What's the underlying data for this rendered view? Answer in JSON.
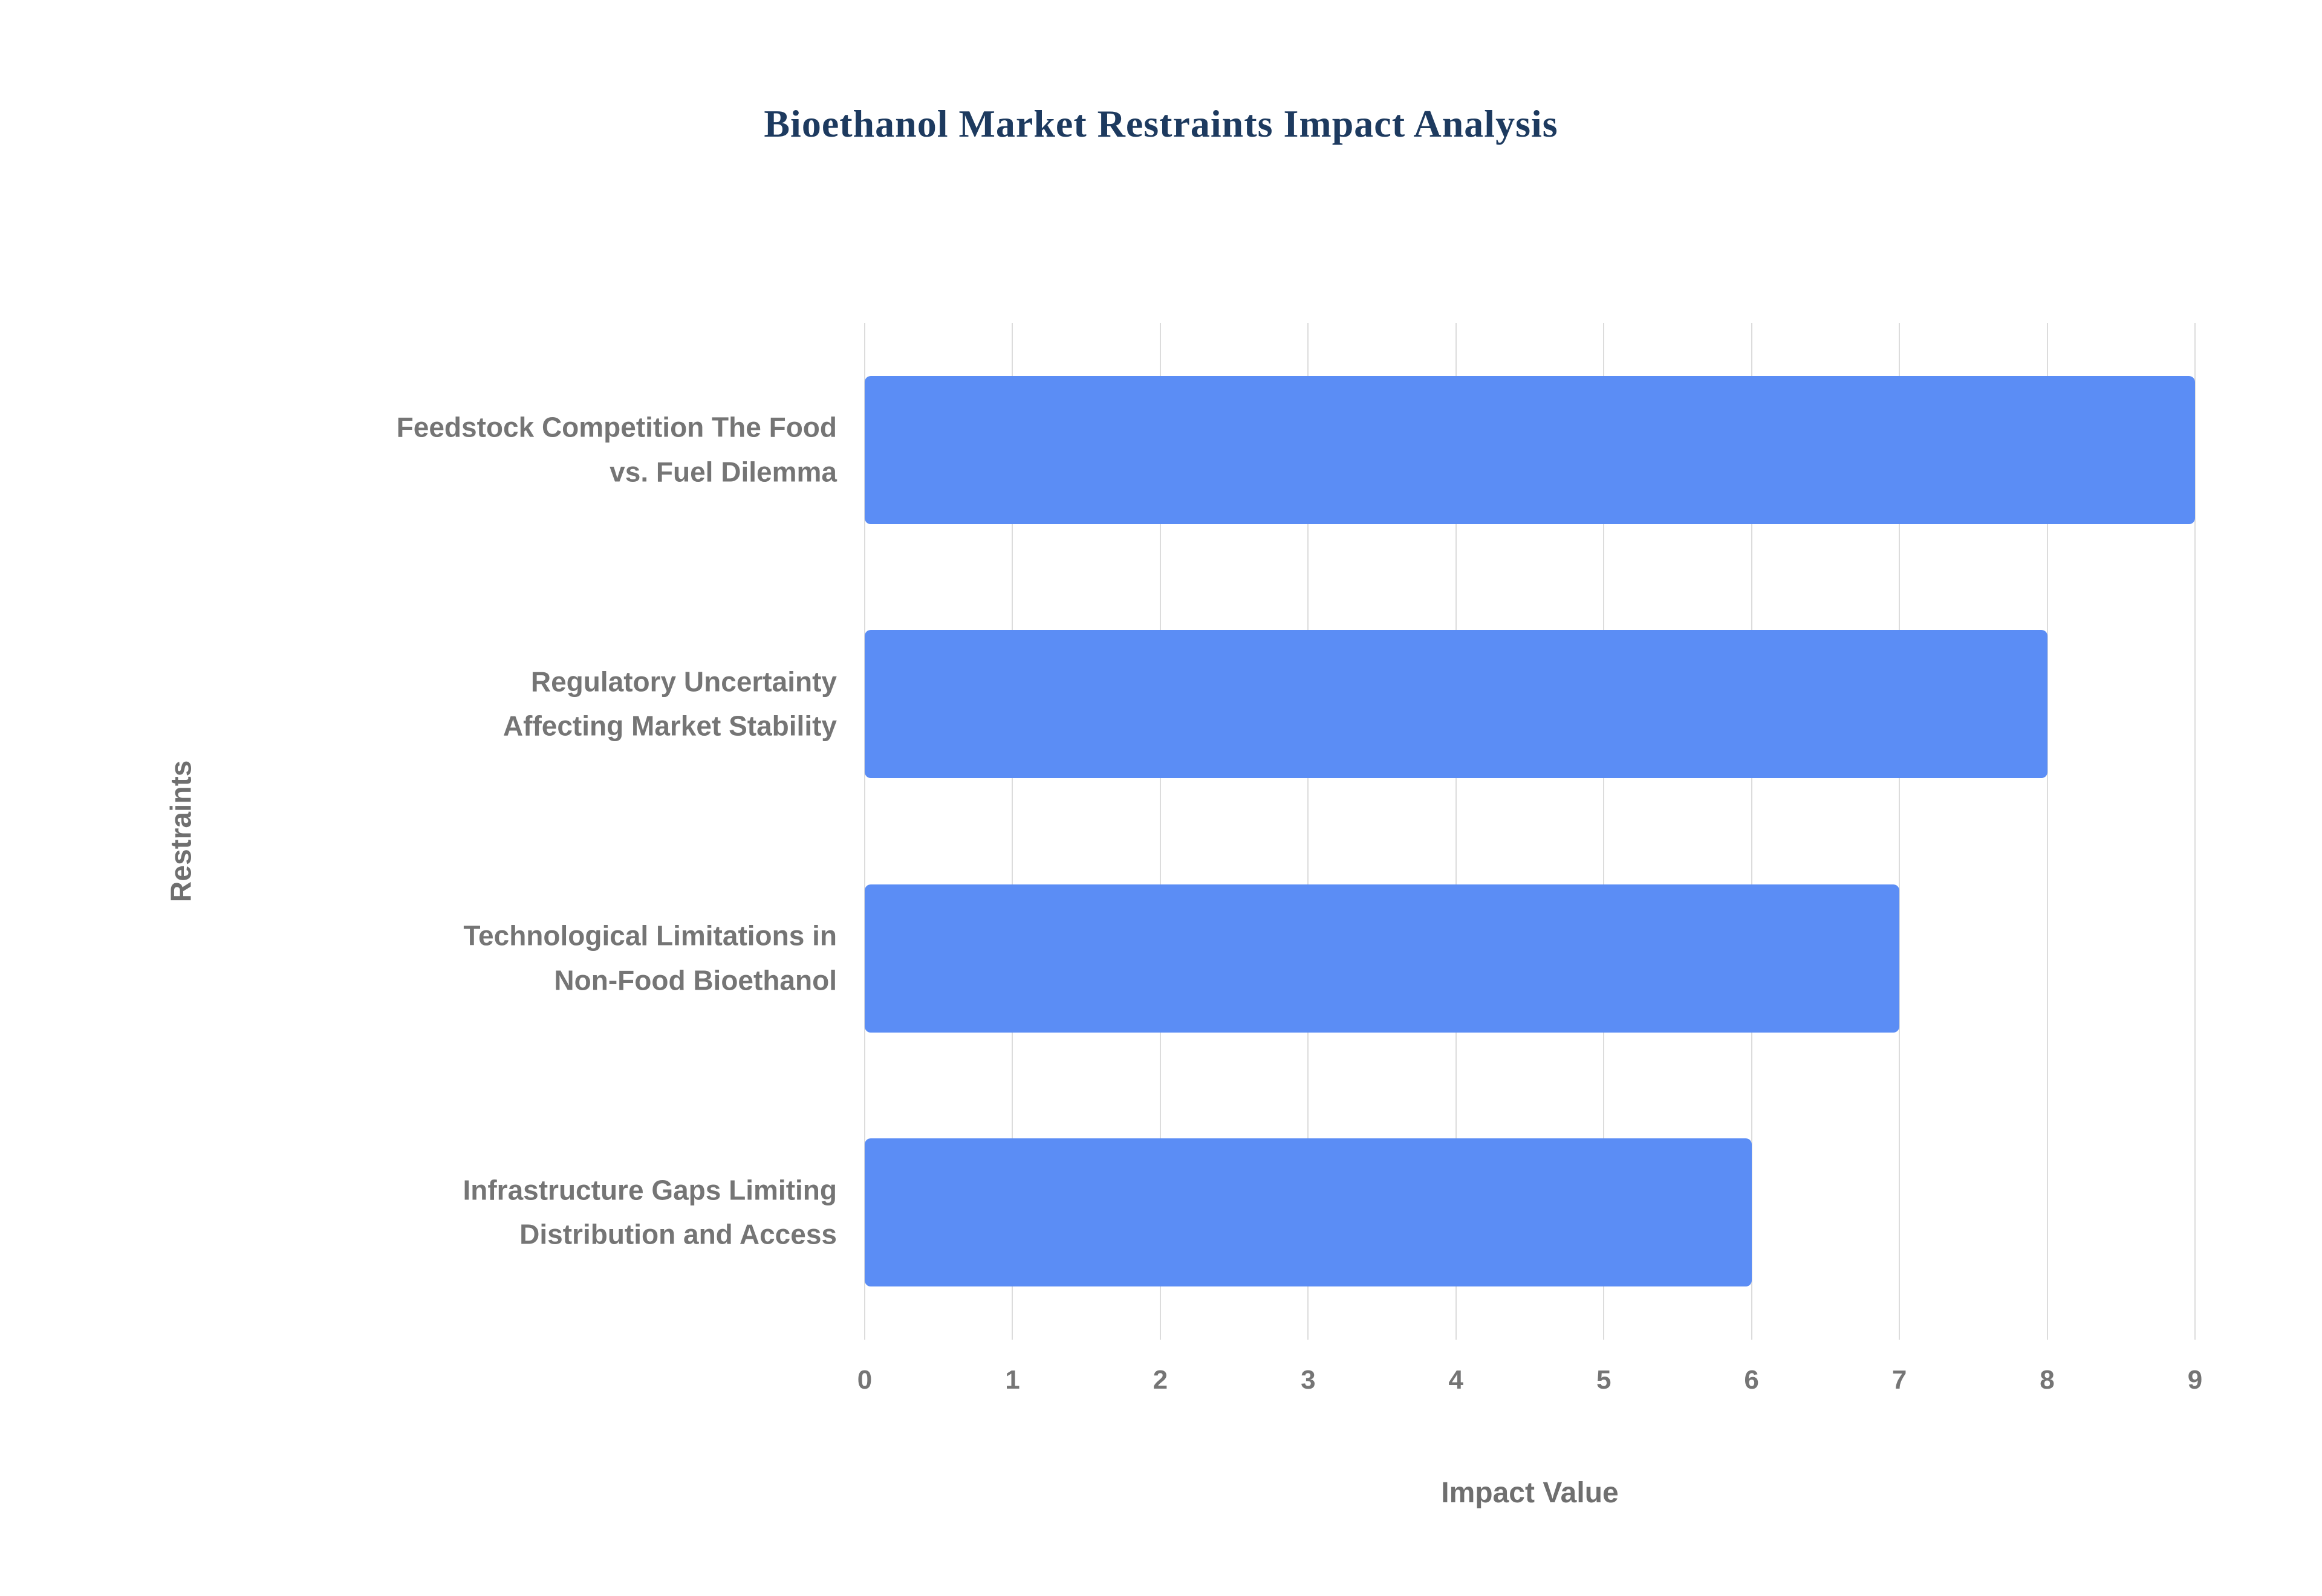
{
  "chart_data": {
    "type": "bar",
    "orientation": "horizontal",
    "title": "Bioethanol Market Restraints Impact Analysis",
    "categories": [
      [
        "Feedstock Competition The Food",
        "vs. Fuel Dilemma"
      ],
      [
        "Regulatory Uncertainty",
        "Affecting Market Stability"
      ],
      [
        "Technological Limitations in",
        "Non-Food Bioethanol"
      ],
      [
        "Infrastructure Gaps Limiting",
        "Distribution and Access"
      ]
    ],
    "values": [
      9,
      8,
      7,
      6
    ],
    "xlabel": "Impact Value",
    "ylabel": "Restraints",
    "xlim": [
      0,
      9
    ],
    "xticks": [
      0,
      1,
      2,
      3,
      4,
      5,
      6,
      7,
      8,
      9
    ],
    "grid": true,
    "legend": false,
    "colors": {
      "bar": "#5b8df5",
      "grid": "#dcdcdc",
      "title": "#1d3a5f",
      "axis_text": "#757575"
    }
  }
}
